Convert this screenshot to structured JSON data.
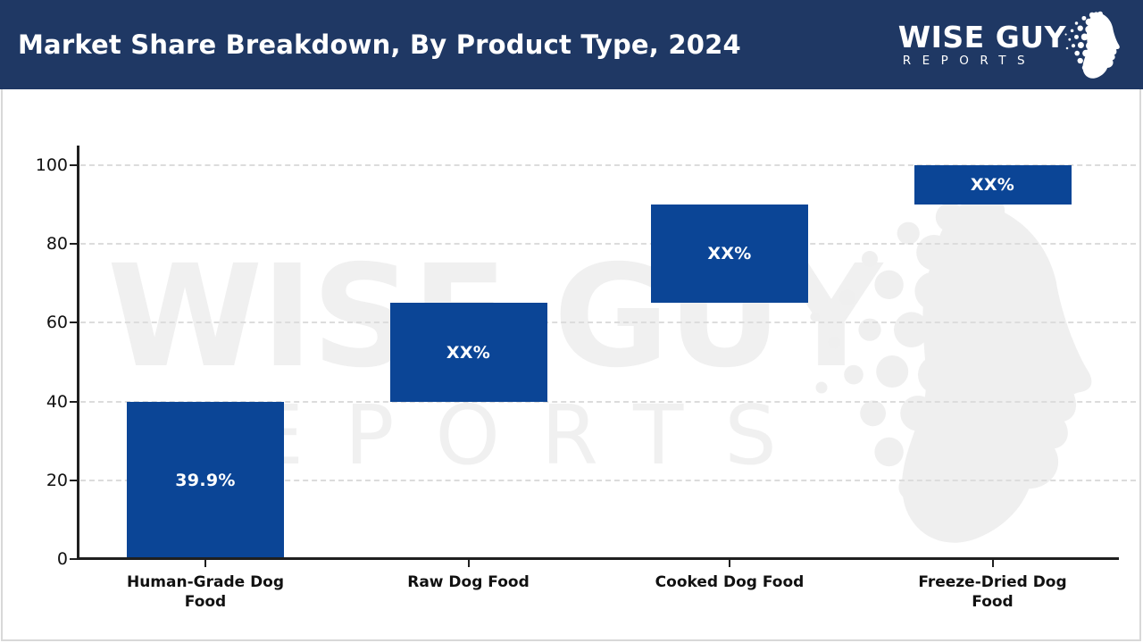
{
  "header": {
    "title": "Market Share Breakdown, By Product Type, 2024",
    "logo": {
      "line1": "WISE GUY",
      "line2": "REPORTS"
    }
  },
  "watermark": {
    "line1": "WISE GUY",
    "line2": "REPORTS"
  },
  "colors": {
    "header_bg": "#1F3864",
    "bar": "#0B4596",
    "bar_label": "#FFFFFF",
    "axis": "#1F1F1F",
    "gridline": "#DCDCDC",
    "watermark": "#F0F0F0",
    "page_border": "#D8D8D8"
  },
  "chart_data": {
    "type": "bar",
    "subtype": "waterfall",
    "title": "Market Share Breakdown, By Product Type, 2024",
    "categories": [
      "Human-Grade Dog Food",
      "Raw Dog Food",
      "Cooked Dog Food",
      "Freeze-Dried Dog Food"
    ],
    "series": [
      {
        "category": "Human-Grade Dog Food",
        "start": 0,
        "end": 39.9,
        "label": "39.9%"
      },
      {
        "category": "Raw Dog Food",
        "start": 39.9,
        "end": 65,
        "label": "XX%"
      },
      {
        "category": "Cooked Dog Food",
        "start": 65,
        "end": 90,
        "label": "XX%"
      },
      {
        "category": "Freeze-Dried Dog Food",
        "start": 90,
        "end": 100,
        "label": "XX%"
      }
    ],
    "yticks": [
      0,
      20,
      40,
      60,
      80,
      100
    ],
    "ylim": [
      0,
      105
    ],
    "xlabel": "",
    "ylabel": "",
    "grid": "horizontal-dashed",
    "legend": "none",
    "bar_color": "#0B4596",
    "bar_label_color": "#FFFFFF"
  }
}
